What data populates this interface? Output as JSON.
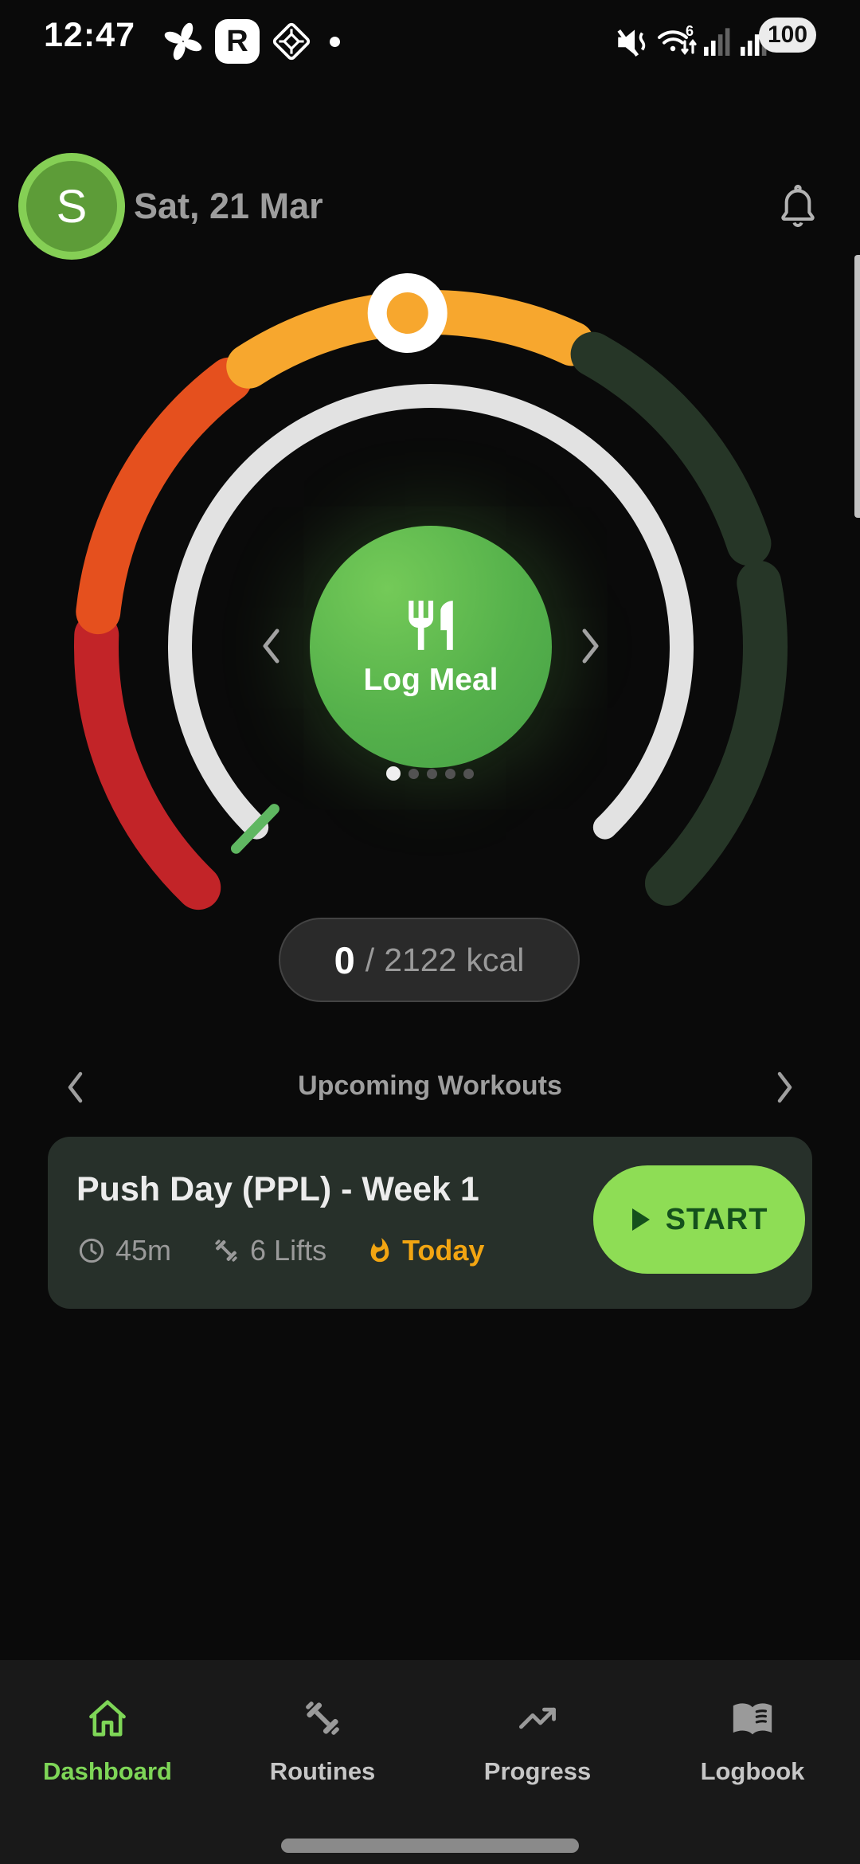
{
  "status_bar": {
    "time": "12:47",
    "app_icon_letter": "R",
    "wifi_label": "6",
    "battery": "100",
    "left_icons": [
      "fan-icon",
      "r-app-icon",
      "diamond-icon",
      "notification-dot"
    ],
    "right_icons": [
      "mute-vibrate-icon",
      "wifi-6-icon",
      "signal-icon",
      "signal-icon",
      "battery-100"
    ]
  },
  "header": {
    "avatar_initial": "S",
    "date": "Sat, 21 Mar",
    "bell_icon": "bell-outline"
  },
  "gauge": {
    "action": {
      "label": "Log Meal",
      "icon": "restaurant-icon"
    },
    "carousel_dots": {
      "count": 5,
      "active_index": 0
    },
    "calories": {
      "consumed": "0",
      "divider": "/",
      "goal": "2122",
      "unit": "kcal"
    }
  },
  "workouts": {
    "section_title": "Upcoming Workouts",
    "card": {
      "title": "Push Day (PPL) - Week 1",
      "duration": "45m",
      "lifts": "6 Lifts",
      "when": "Today",
      "start_label": "START"
    }
  },
  "bottom_nav": {
    "items": [
      {
        "label": "Dashboard",
        "icon": "home-icon",
        "active": true
      },
      {
        "label": "Routines",
        "icon": "dumbbell-icon",
        "active": false
      },
      {
        "label": "Progress",
        "icon": "trending-up-icon",
        "active": false
      },
      {
        "label": "Logbook",
        "icon": "open-book-icon",
        "active": false
      }
    ]
  },
  "colors": {
    "amber": "#f7a72e",
    "orange_red": "#e5501e",
    "dark_red": "#c22428",
    "dark_green": "#263627",
    "track": "#e2e2e2",
    "tick_green": "#5fb761",
    "accent_green": "#7ed657",
    "start_button_bg": "#8edd55",
    "start_button_text": "#14501c",
    "today_amber": "#f2a512"
  }
}
